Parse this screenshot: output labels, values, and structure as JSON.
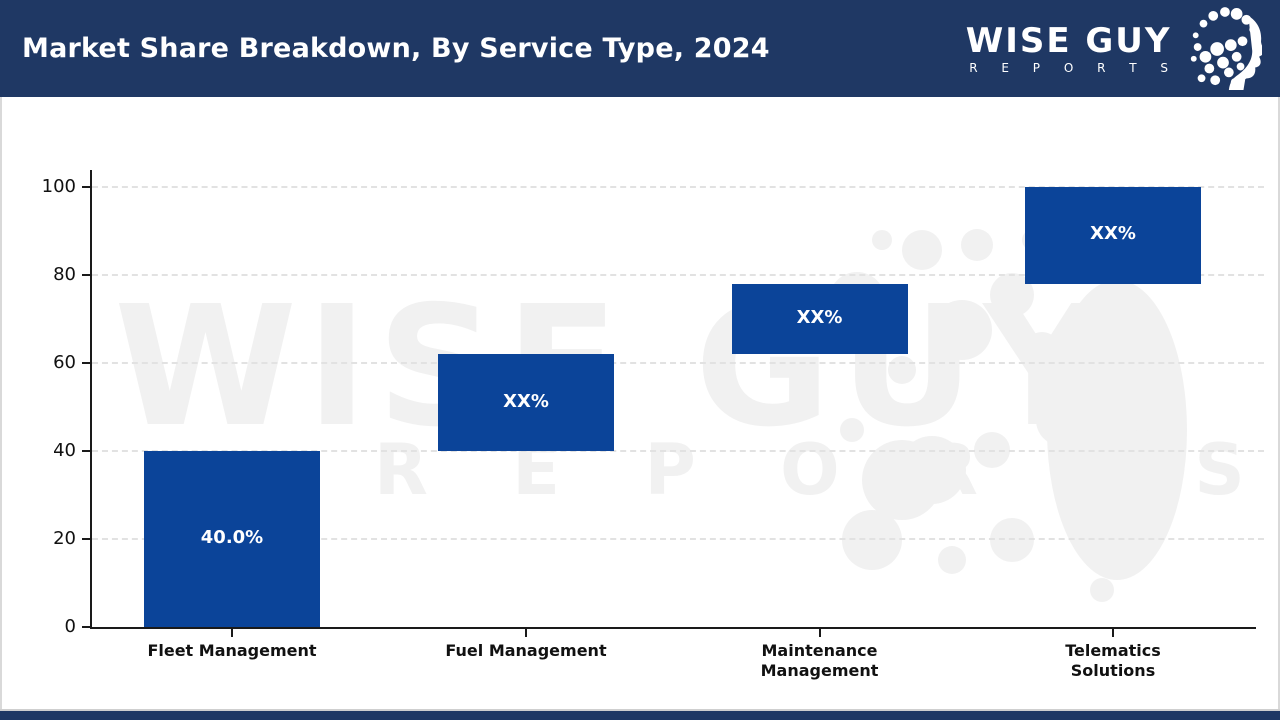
{
  "header": {
    "title": "Market Share Breakdown, By Service Type, 2024",
    "logo": {
      "line1": "WISE GUY",
      "line2": "R E P O R T S"
    }
  },
  "watermark": {
    "line1": "WISE GUY",
    "line2": "R E P O R T S"
  },
  "chart_data": {
    "type": "bar",
    "subtype": "waterfall",
    "title": "Market Share Breakdown, By Service Type, 2024",
    "categories": [
      "Fleet Management",
      "Fuel Management",
      "Maintenance\nManagement",
      "Telematics\nSolutions"
    ],
    "segments": [
      {
        "category": "Fleet Management",
        "start": 0,
        "end": 40,
        "value": 40,
        "label": "40.0%"
      },
      {
        "category": "Fuel Management",
        "start": 40,
        "end": 62,
        "value": 22,
        "label": "XX%"
      },
      {
        "category": "Maintenance\nManagement",
        "start": 62,
        "end": 78,
        "value": 16,
        "label": "XX%"
      },
      {
        "category": "Telematics\nSolutions",
        "start": 78,
        "end": 100,
        "value": 22,
        "label": "XX%"
      }
    ],
    "xlabel": "",
    "ylabel": "",
    "ylim": [
      0,
      100
    ],
    "yticks": [
      0,
      20,
      40,
      60,
      80,
      100
    ],
    "grid": "horizontal-dashed",
    "legend": "none",
    "bar_color": "#0b4499",
    "bar_label_color": "#ffffff"
  },
  "colors": {
    "header_bg": "#1f3864",
    "footer_bg": "#1f3864",
    "bar": "#0b4499",
    "grid": "#e2e2e2",
    "axis": "#1a1a1a",
    "watermark": "#f1f1f1",
    "title_text": "#ffffff"
  }
}
